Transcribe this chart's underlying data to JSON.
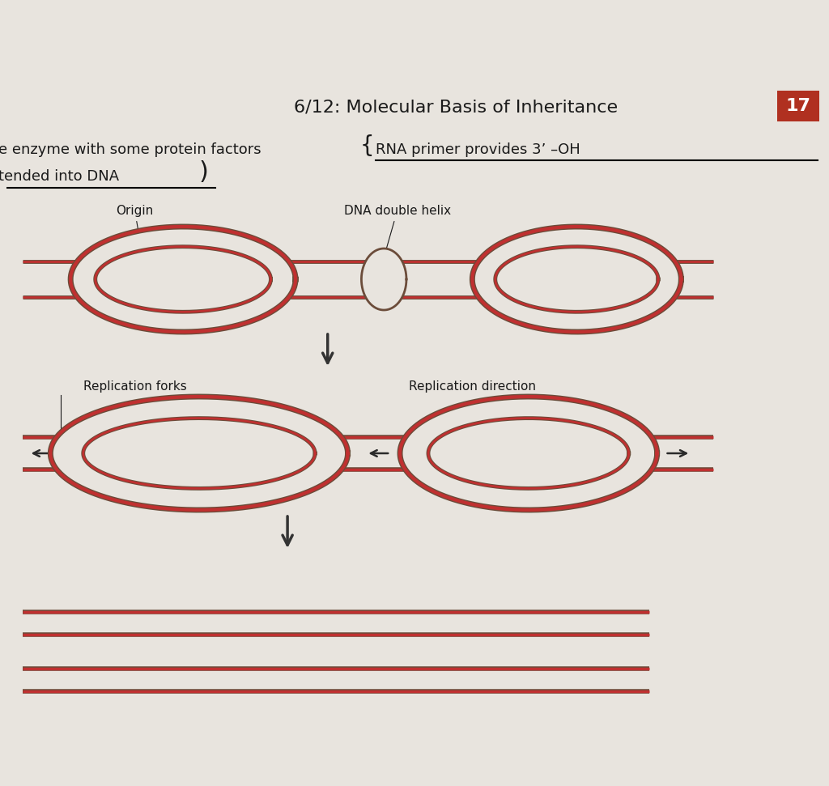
{
  "title": "6/12: Molecular Basis of Inheritance",
  "page_num": "17",
  "page_num_bg": "#b03020",
  "page_num_fg": "#ffffff",
  "bg_color": "#d8d4ce",
  "paper_color": "#e8e4de",
  "text_color": "#1a1a1a",
  "header_text1": "e enzyme with some protein factors",
  "header_text2": "RNA primer provides 3’ –OH",
  "header_text3": "tended into DNA",
  "label_origin": "Origin",
  "label_dna": "DNA double helix",
  "label_rep_forks": "Replication forks",
  "label_rep_dir": "Replication direction",
  "dna_color_outer": "#6b4c3a",
  "dna_color_inner": "#c03030",
  "font_size_title": 16,
  "font_size_label": 11,
  "font_size_header": 13
}
